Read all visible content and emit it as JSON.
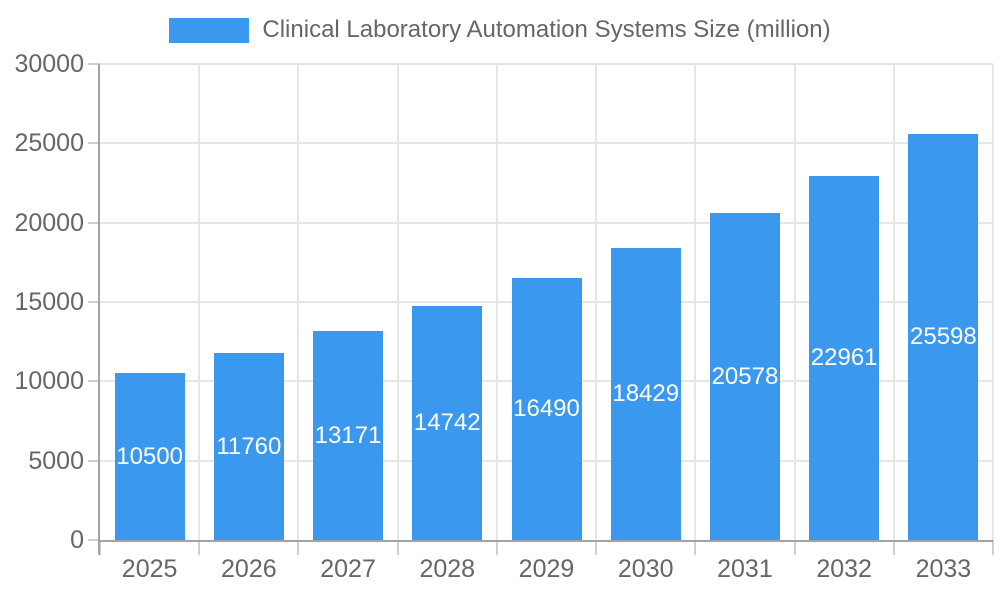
{
  "legend": {
    "label": "Clinical Laboratory Automation Systems Size (million)"
  },
  "colors": {
    "bar": "#3A99EE",
    "grid_line": "#E6E6E6",
    "axis_line": "#A3A3A3",
    "tick_mark": "#CFCFCF",
    "tick_label": "#666666",
    "legend_label": "#666666",
    "bar_label": "#FFFFFF",
    "background": "#FFFFFF"
  },
  "chart_data": {
    "type": "bar",
    "title": "Clinical Laboratory Automation Systems Size (million)",
    "categories": [
      "2025",
      "2026",
      "2027",
      "2028",
      "2029",
      "2030",
      "2031",
      "2032",
      "2033"
    ],
    "values": [
      10500,
      11760,
      13171,
      14742,
      16490,
      18429,
      20578,
      22961,
      25598
    ],
    "series": [
      {
        "name": "Clinical Laboratory Automation Systems Size (million)",
        "values": [
          10500,
          11760,
          13171,
          14742,
          16490,
          18429,
          20578,
          22961,
          25598
        ]
      }
    ],
    "xlabel": "",
    "ylabel": "",
    "ylim": [
      0,
      30000
    ],
    "yticks": [
      0,
      5000,
      10000,
      15000,
      20000,
      25000,
      30000
    ],
    "grid": true,
    "legend_position": "top-center",
    "bar_labels": "inside-centered-white"
  }
}
